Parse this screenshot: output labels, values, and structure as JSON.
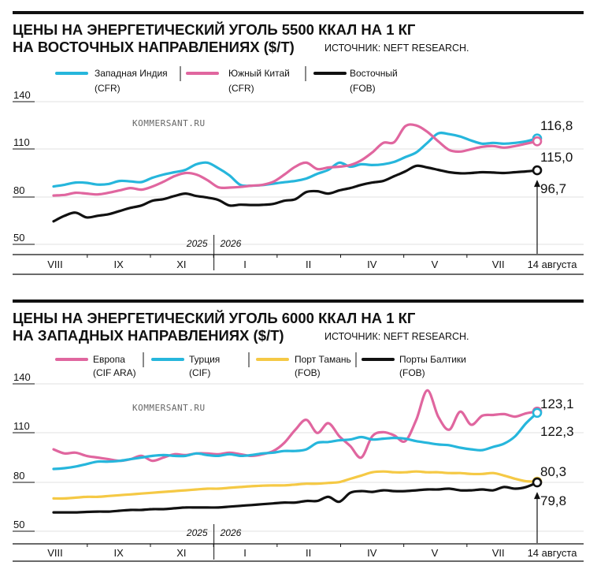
{
  "colors": {
    "cyan": "#26b6dc",
    "pink": "#e0669f",
    "black": "#111111",
    "yellow": "#f5c945"
  },
  "chart_data": [
    {
      "type": "line",
      "title_line1": "ЦЕНЫ НА ЭНЕРГЕТИЧЕСКИЙ УГОЛЬ 5500 ККАЛ НА 1 КГ",
      "title_line2": "НА ВОСТОЧНЫХ НАПРАВЛЕНИЯХ ($/Т)",
      "source": "ИСТОЧНИК: NEFT RESEARCH.",
      "watermark": "KOMMERSANT.RU",
      "ylim": [
        50,
        150
      ],
      "yticks": [
        "140",
        "110",
        "80",
        "50"
      ],
      "ytick_values": [
        140,
        110,
        80,
        50
      ],
      "xlim": [
        0,
        53
      ],
      "xticks": [
        "VIII",
        "IX",
        "XI",
        "I",
        "II",
        "IV",
        "V",
        "VII",
        "14 августа"
      ],
      "xtick_positions": [
        0,
        8.6,
        17.1,
        25.7,
        34.3,
        42.9,
        51.4,
        60,
        67.5
      ],
      "year_labels": [
        "2025",
        "2026"
      ],
      "year_divider": 21.5,
      "grid": "horizontal",
      "legend_position": "top",
      "series": [
        {
          "name": "Западная Индия",
          "sub": "(CFR)",
          "color_key": "cyan",
          "end_label": "116,8",
          "values": [
            86.5,
            87.6,
            89.0,
            88.8,
            87.7,
            88.1,
            90.0,
            89.7,
            89.3,
            92.0,
            94.0,
            95.5,
            97.0,
            100.5,
            101.5,
            98.0,
            93.5,
            87.5,
            87.0,
            87.4,
            88.3,
            89.2,
            90.0,
            91.5,
            94.5,
            97.0,
            101.5,
            99.0,
            100.5,
            100.0,
            100.5,
            102.0,
            105.0,
            108.0,
            114.0,
            120.0,
            119.5,
            118.0,
            115.5,
            113.5,
            114.0,
            113.5,
            114.0,
            115.0,
            116.8
          ]
        },
        {
          "name": "Южный Китай",
          "sub": "(CFR)",
          "color_key": "pink",
          "end_label": "115,0",
          "values": [
            80.8,
            81.2,
            82.5,
            82.0,
            81.5,
            82.5,
            84.0,
            85.5,
            84.5,
            86.5,
            89.5,
            93.0,
            95.0,
            94.0,
            90.5,
            86.0,
            85.8,
            86.2,
            87.0,
            87.5,
            89.5,
            94.0,
            99.0,
            101.5,
            97.5,
            98.5,
            99.0,
            100.0,
            103.0,
            108.0,
            114.0,
            114.5,
            124.5,
            125.0,
            121.0,
            115.0,
            109.5,
            108.5,
            110.0,
            111.5,
            112.0,
            111.0,
            112.0,
            113.5,
            115.0
          ]
        },
        {
          "name": "Восточный",
          "sub": "(FOB)",
          "color_key": "black",
          "end_label": "96,7",
          "values": [
            64.5,
            68.0,
            70.0,
            67.0,
            68.0,
            69.0,
            71.0,
            73.0,
            74.5,
            77.5,
            78.5,
            80.5,
            82.0,
            80.5,
            79.5,
            78.0,
            74.5,
            75.0,
            74.8,
            74.9,
            75.5,
            77.5,
            78.5,
            83.0,
            83.5,
            82.0,
            84.0,
            85.5,
            87.5,
            89.0,
            90.0,
            93.0,
            96.0,
            99.5,
            98.5,
            97.0,
            95.5,
            94.8,
            95.0,
            95.5,
            95.3,
            95.0,
            95.5,
            96.0,
            96.7
          ]
        }
      ]
    },
    {
      "type": "line",
      "title_line1": "ЦЕНЫ НА ЭНЕРГЕТИЧЕСКИЙ УГОЛЬ 6000 ККАЛ НА 1 КГ",
      "title_line2": "НА ЗАПАДНЫХ НАПРАВЛЕНИЯХ ($/Т)",
      "source": "ИСТОЧНИК: NEFT RESEARCH.",
      "watermark": "KOMMERSANT.RU",
      "ylim": [
        50,
        150
      ],
      "yticks": [
        "140",
        "110",
        "80",
        "50"
      ],
      "ytick_values": [
        140,
        110,
        80,
        50
      ],
      "xticks": [
        "VIII",
        "IX",
        "XI",
        "I",
        "II",
        "IV",
        "V",
        "VII",
        "14 августа"
      ],
      "xtick_positions": [
        0,
        8.6,
        17.1,
        25.7,
        34.3,
        42.9,
        51.4,
        60,
        67.5
      ],
      "year_labels": [
        "2025",
        "2026"
      ],
      "year_divider": 21.5,
      "grid": "horizontal",
      "legend_position": "top",
      "series": [
        {
          "name": "Европа",
          "sub": "(CIF ARA)",
          "color_key": "pink",
          "end_label": "123,1",
          "values": [
            100.0,
            97.5,
            98.0,
            96.0,
            95.0,
            94.0,
            93.0,
            94.0,
            96.0,
            93.0,
            95.0,
            97.0,
            96.5,
            97.5,
            97.5,
            97.0,
            98.0,
            97.0,
            96.0,
            97.0,
            99.0,
            104.0,
            112.0,
            118.0,
            110.0,
            116.0,
            108.0,
            102.0,
            95.0,
            108.0,
            110.5,
            108.5,
            105.0,
            118.0,
            136.0,
            120.0,
            112.0,
            123.0,
            115.0,
            120.5,
            121.0,
            121.5,
            120.0,
            122.0,
            123.1
          ]
        },
        {
          "name": "Турция",
          "sub": "(CIF)",
          "color_key": "cyan",
          "end_label": "122,3",
          "values": [
            88.0,
            88.5,
            89.5,
            91.0,
            92.5,
            92.5,
            93.0,
            94.0,
            95.0,
            96.0,
            96.5,
            96.0,
            96.0,
            97.5,
            96.5,
            96.0,
            97.0,
            96.0,
            96.5,
            97.5,
            98.0,
            99.0,
            99.0,
            100.0,
            104.0,
            104.5,
            105.5,
            106.0,
            107.5,
            106.0,
            106.5,
            107.0,
            106.5,
            105.0,
            104.0,
            103.0,
            102.5,
            101.0,
            100.0,
            99.5,
            101.5,
            103.5,
            108.0,
            116.0,
            122.3
          ]
        },
        {
          "name": "Порт Тамань",
          "sub": "(FOB)",
          "color_key": "yellow",
          "end_label": "80,3",
          "values": [
            70.0,
            70.0,
            70.5,
            71.0,
            71.0,
            71.5,
            72.0,
            72.5,
            73.0,
            73.5,
            74.0,
            74.5,
            75.0,
            75.5,
            76.0,
            76.0,
            76.5,
            77.0,
            77.5,
            77.8,
            78.0,
            78.0,
            78.5,
            79.0,
            79.0,
            79.5,
            80.0,
            82.0,
            84.0,
            86.0,
            86.5,
            86.0,
            86.0,
            86.5,
            86.0,
            86.0,
            85.5,
            85.5,
            85.0,
            85.0,
            85.5,
            84.0,
            82.0,
            80.5,
            80.3
          ]
        },
        {
          "name": "Порты Балтики",
          "sub": "(FOB)",
          "color_key": "black",
          "end_label": "79,8",
          "values": [
            61.5,
            61.5,
            61.5,
            61.8,
            62.0,
            62.0,
            62.5,
            63.0,
            63.0,
            63.5,
            63.5,
            64.0,
            64.5,
            64.5,
            64.5,
            64.5,
            65.0,
            65.5,
            66.0,
            66.5,
            67.0,
            67.5,
            67.5,
            68.5,
            68.5,
            71.0,
            68.0,
            73.5,
            74.5,
            74.0,
            75.0,
            74.5,
            74.5,
            75.0,
            75.5,
            75.5,
            76.0,
            75.0,
            75.0,
            75.5,
            75.0,
            77.0,
            76.0,
            77.0,
            79.8
          ]
        }
      ]
    }
  ]
}
